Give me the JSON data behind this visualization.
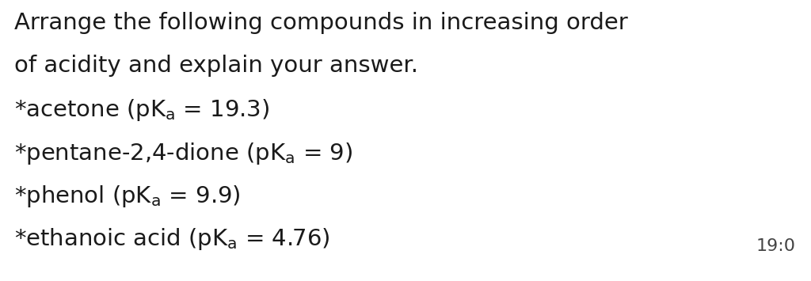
{
  "background_color": "#ffffff",
  "bottom_bar_color": "#1a1a1a",
  "text_color": "#1a1a1a",
  "line1": "Arrange the following compounds in increasing order",
  "line2": "of acidity and explain your answer.",
  "compounds": [
    "*acetone (pK$_{\\mathrm{a}}$ = 19.3)",
    "*pentane-2,4-dione (pK$_{\\mathrm{a}}$ = 9)",
    "*phenol (pK$_{\\mathrm{a}}$ = 9.9)",
    "*ethanoic acid (pK$_{\\mathrm{a}}$ = 4.76)"
  ],
  "watermark": "19:0",
  "figsize": [
    10.24,
    3.55
  ],
  "dpi": 100,
  "title_fontsize": 21,
  "compound_fontsize": 21,
  "watermark_fontsize": 16
}
